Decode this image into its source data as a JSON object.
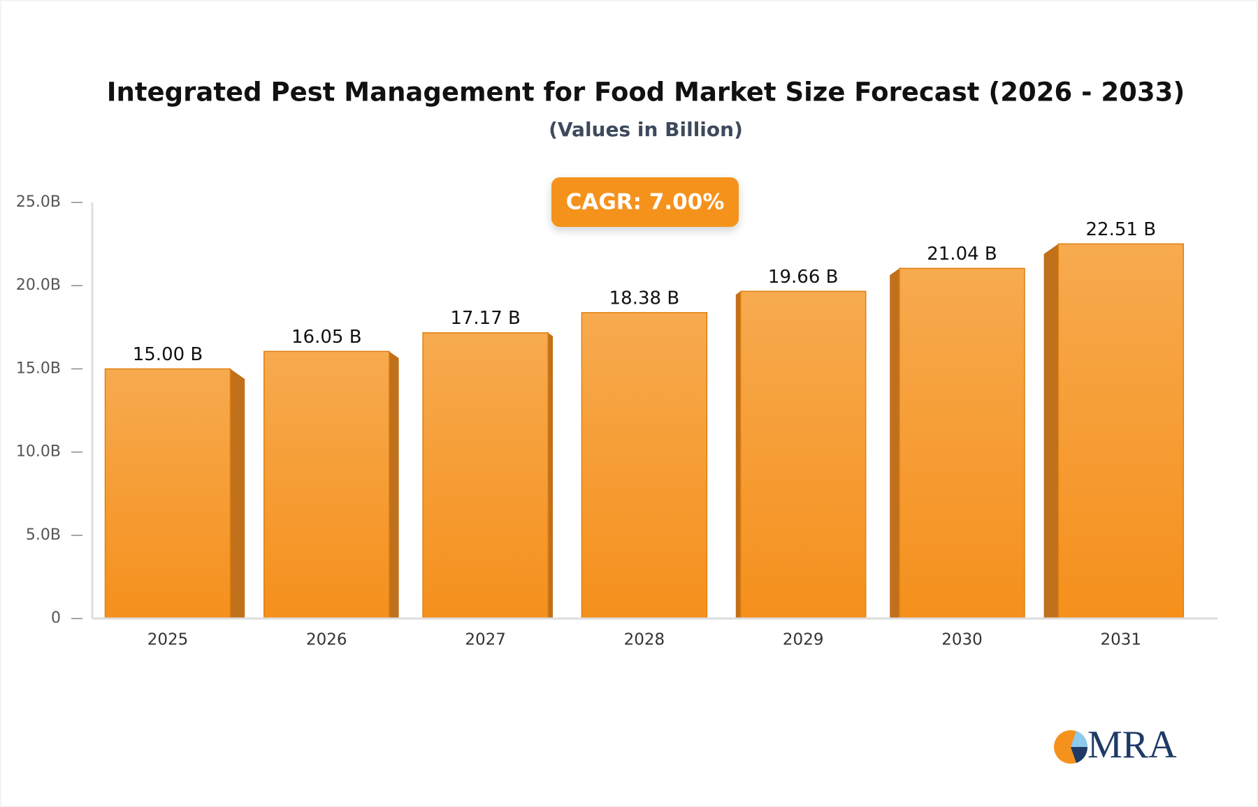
{
  "chart_data": {
    "type": "bar",
    "title": "Integrated Pest Management for Food Market Size Forecast (2026 - 2033)",
    "subtitle": "(Values in Billion)",
    "annotation": "CAGR: 7.00%",
    "logo": "MRA",
    "categories": [
      "2025",
      "2026",
      "2027",
      "2028",
      "2029",
      "2030",
      "2031"
    ],
    "values": [
      15.0,
      16.05,
      17.17,
      18.38,
      19.66,
      21.04,
      22.51
    ],
    "value_labels": [
      "15.00 B",
      "16.05 B",
      "17.17 B",
      "18.38 B",
      "19.66 B",
      "21.04 B",
      "22.51 B"
    ],
    "color": "#f59a2e",
    "ylim": [
      0,
      25
    ],
    "yticks": [
      0,
      {
        "value": 5,
        "label": "5.0B"
      },
      {
        "value": 10,
        "label": "10.0B"
      },
      {
        "value": 15,
        "label": "15.0B"
      },
      {
        "value": 20,
        "label": "20.0B"
      },
      {
        "value": 25,
        "label": "25.0B"
      }
    ],
    "grid": false
  }
}
